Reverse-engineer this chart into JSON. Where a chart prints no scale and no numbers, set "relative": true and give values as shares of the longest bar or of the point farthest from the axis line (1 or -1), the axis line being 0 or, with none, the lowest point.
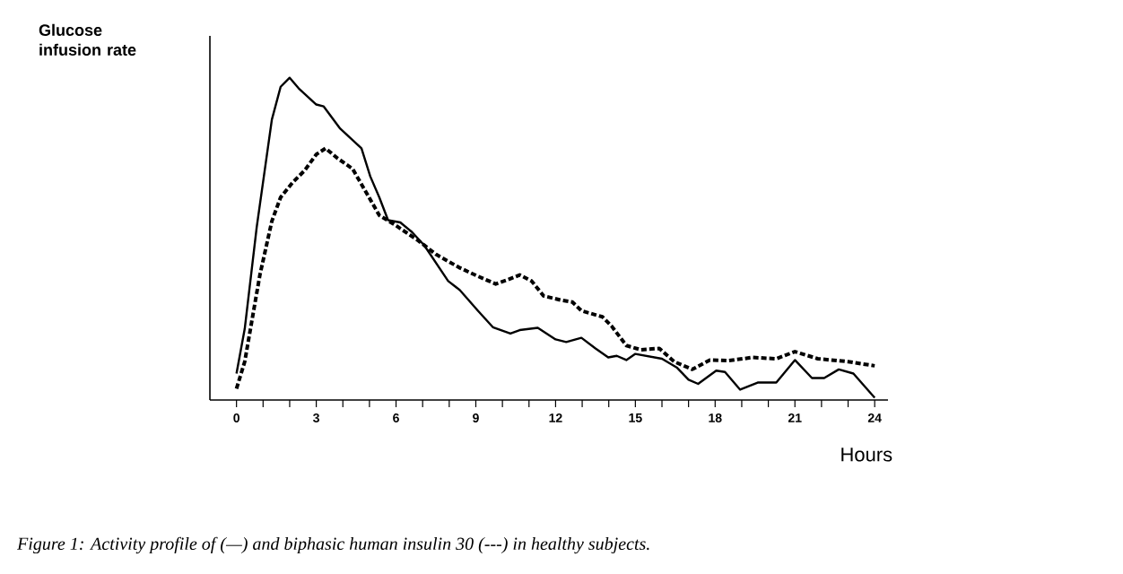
{
  "chart_data": {
    "type": "line",
    "relative": true,
    "ylabel": "Glucose infusion rate",
    "xlabel": "Hours",
    "xlim": [
      -1,
      24.5
    ],
    "xticks": [
      0,
      3,
      6,
      9,
      12,
      15,
      18,
      21,
      24
    ],
    "grid": false,
    "marker": "none",
    "annotations": [
      "Figure 1: Activity profile of (—) and biphasic human insulin 30 (---) in healthy subjects."
    ],
    "series": [
      {
        "color": "#000000",
        "line_style": "solid",
        "x": [
          0,
          0.31,
          0.76,
          1.33,
          1.66,
          2.0,
          2.34,
          3.0,
          3.28,
          3.9,
          4.7,
          5.03,
          5.37,
          5.7,
          6.16,
          6.6,
          7.06,
          7.96,
          8.4,
          9.08,
          9.64,
          10.3,
          10.65,
          11.33,
          12.0,
          12.4,
          12.97,
          13.5,
          13.98,
          14.3,
          14.66,
          15.0,
          16.0,
          16.57,
          17.0,
          17.36,
          18.04,
          18.37,
          18.94,
          19.6,
          20.3,
          21.0,
          21.64,
          22.1,
          22.65,
          23.2,
          24.0
        ],
        "values": [
          0.082,
          0.221,
          0.536,
          0.87,
          0.972,
          1.0,
          0.967,
          0.917,
          0.911,
          0.842,
          0.781,
          0.694,
          0.629,
          0.558,
          0.551,
          0.521,
          0.48,
          0.369,
          0.341,
          0.277,
          0.226,
          0.206,
          0.217,
          0.224,
          0.188,
          0.18,
          0.193,
          0.16,
          0.132,
          0.137,
          0.124,
          0.143,
          0.128,
          0.1,
          0.063,
          0.05,
          0.091,
          0.087,
          0.032,
          0.054,
          0.054,
          0.124,
          0.068,
          0.068,
          0.095,
          0.082,
          0.007
        ]
      },
      {
        "color": "#000000",
        "line_style": "dashed",
        "x": [
          0,
          0.31,
          0.88,
          1.33,
          1.66,
          2.11,
          2.56,
          3.0,
          3.35,
          3.8,
          4.36,
          4.92,
          5.37,
          5.93,
          6.83,
          7.5,
          8.4,
          9.08,
          9.75,
          10.2,
          10.65,
          11.1,
          11.55,
          12.2,
          12.63,
          12.97,
          13.76,
          14.1,
          14.66,
          15.2,
          15.9,
          16.46,
          17.14,
          17.8,
          18.5,
          19.4,
          20.3,
          21.0,
          21.86,
          23.0,
          24.0
        ],
        "values": [
          0.035,
          0.119,
          0.388,
          0.555,
          0.629,
          0.675,
          0.712,
          0.762,
          0.781,
          0.75,
          0.718,
          0.638,
          0.573,
          0.545,
          0.495,
          0.452,
          0.41,
          0.384,
          0.36,
          0.373,
          0.388,
          0.369,
          0.323,
          0.31,
          0.304,
          0.277,
          0.258,
          0.23,
          0.169,
          0.156,
          0.16,
          0.119,
          0.095,
          0.124,
          0.122,
          0.132,
          0.128,
          0.15,
          0.128,
          0.119,
          0.106
        ]
      }
    ]
  }
}
